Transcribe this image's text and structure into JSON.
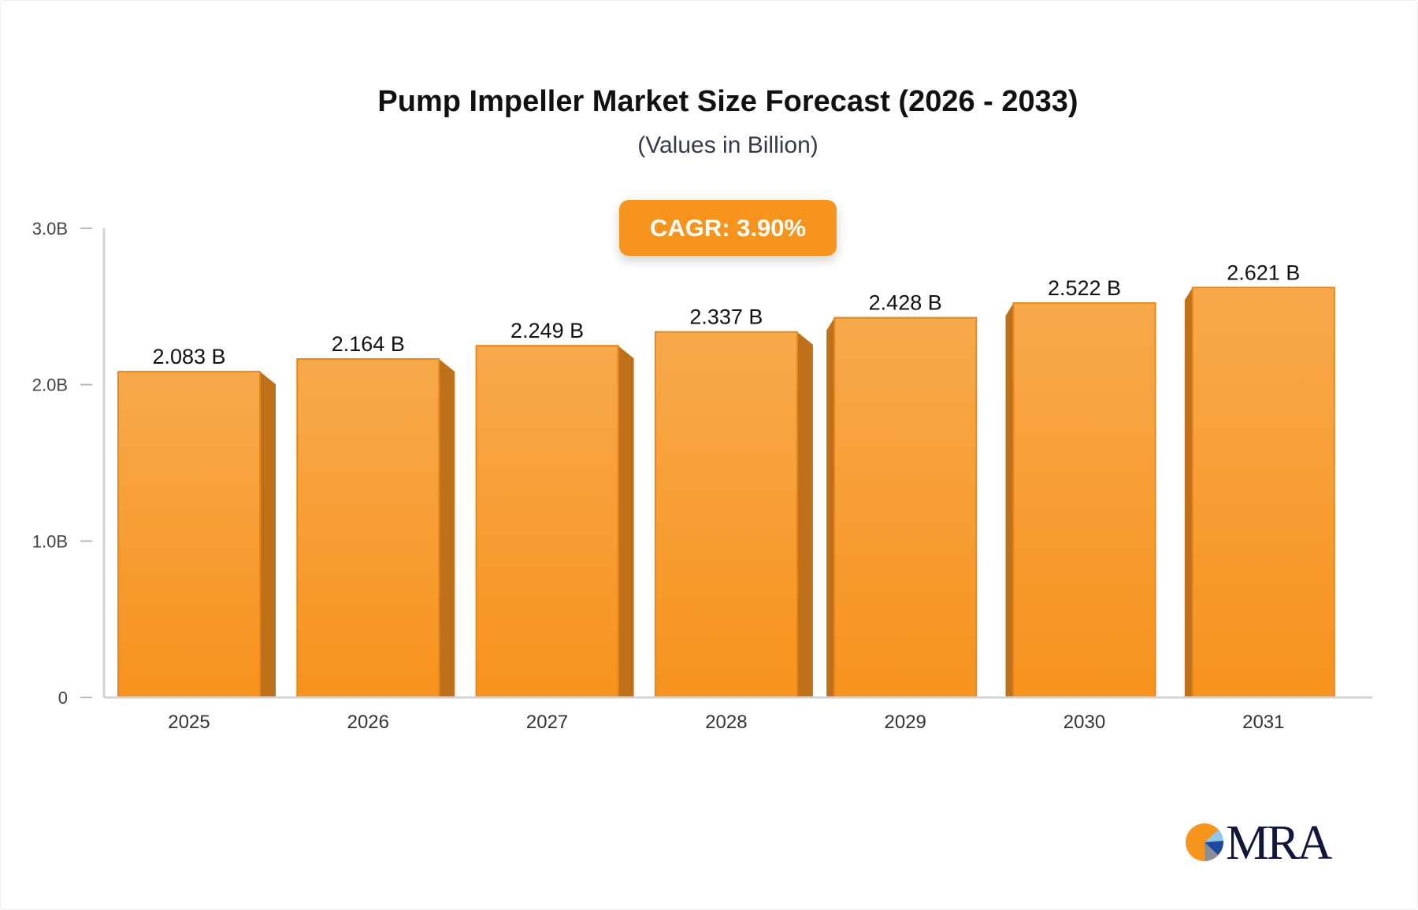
{
  "chart_data": {
    "type": "bar",
    "title": "Pump Impeller Market Size Forecast (2026 - 2033)",
    "subtitle": "(Values in Billion)",
    "annotation": "CAGR: 3.90%",
    "categories": [
      "2025",
      "2026",
      "2027",
      "2028",
      "2029",
      "2030",
      "2031"
    ],
    "values": [
      2.083,
      2.164,
      2.249,
      2.337,
      2.428,
      2.522,
      2.621
    ],
    "data_labels": [
      "2.083 B",
      "2.164 B",
      "2.249 B",
      "2.337 B",
      "2.428 B",
      "2.522 B",
      "2.621 B"
    ],
    "ylim": [
      0,
      3.0
    ],
    "yticks": [
      0,
      1.0,
      2.0,
      3.0
    ],
    "ytick_labels": [
      "0",
      "1.0B",
      "2.0B",
      "3.0B"
    ],
    "xlabel": "",
    "ylabel": "",
    "grid": false,
    "colors": {
      "bar_top": "#f7a94b",
      "bar_bottom": "#f7931e",
      "bar_side": "#bf701b",
      "axis": "#d0d3da"
    }
  },
  "logo": {
    "text": "MRA"
  }
}
